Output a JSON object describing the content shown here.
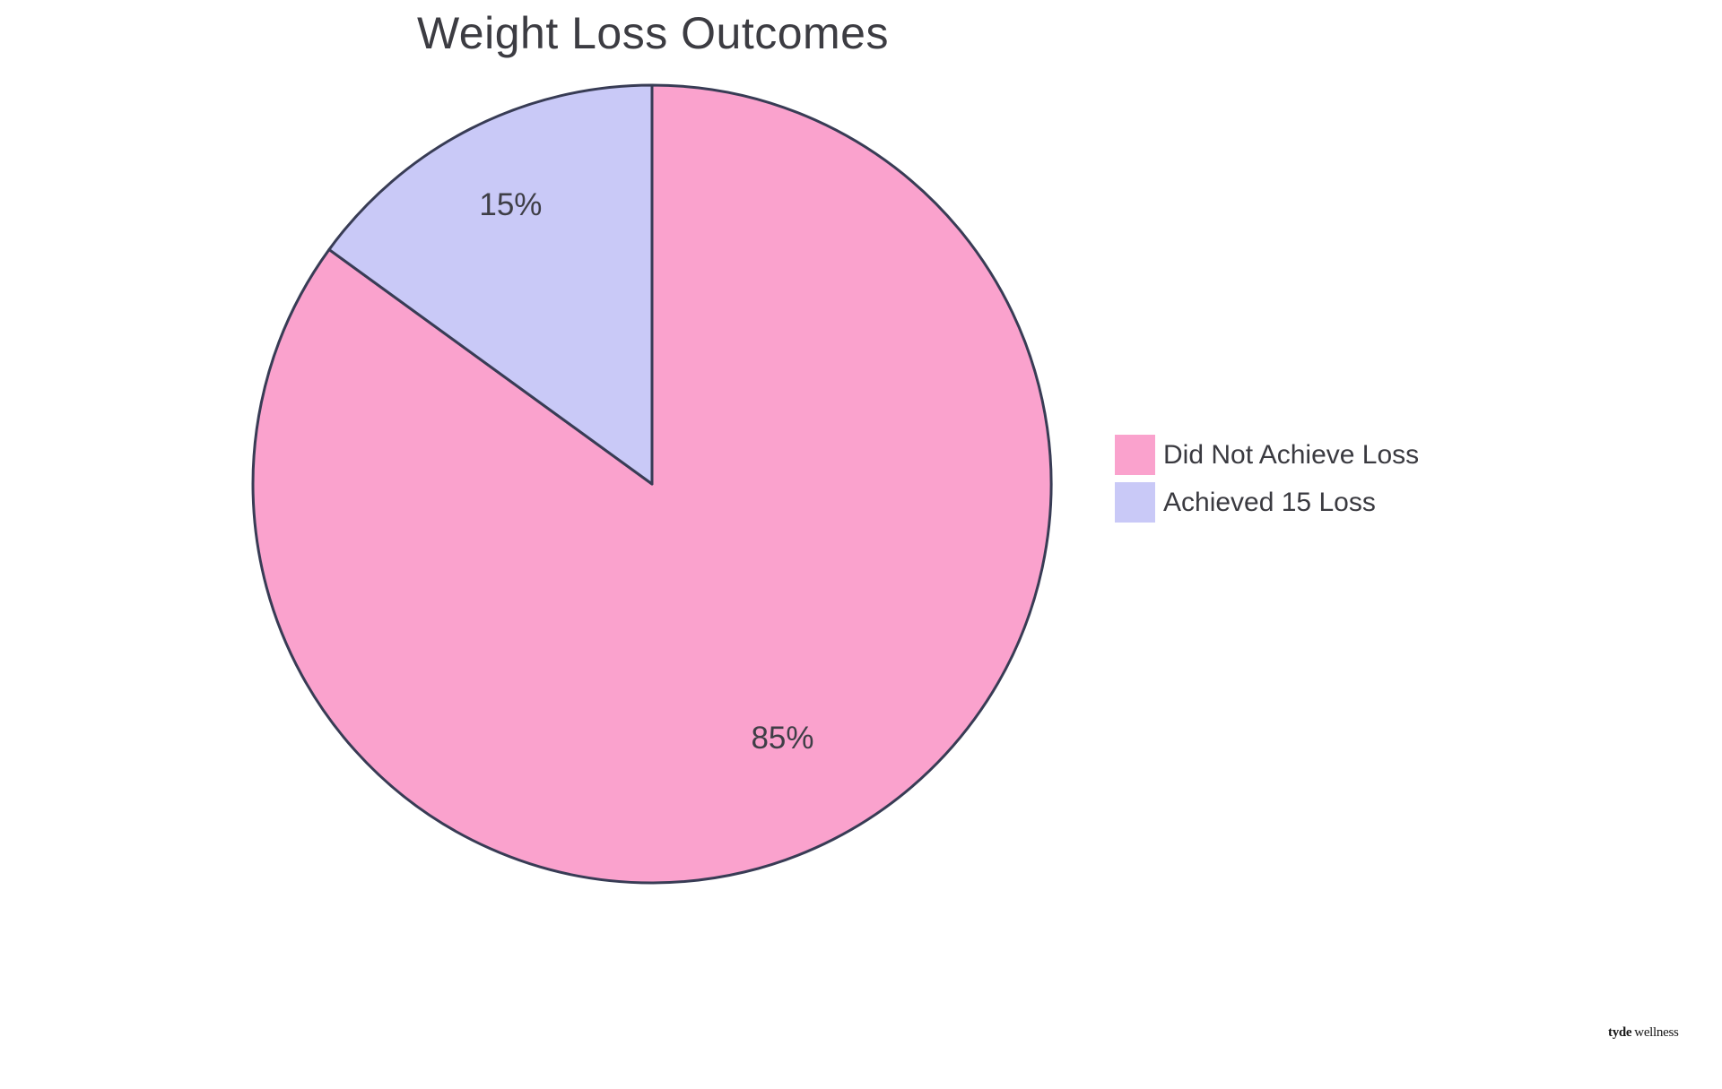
{
  "chart_data": {
    "type": "pie",
    "title": "Weight Loss Outcomes",
    "slices": [
      {
        "label": "Did Not Achieve Loss",
        "value": 85,
        "pct_label": "85%",
        "color": "#faa2cd"
      },
      {
        "label": "Achieved 15 Loss",
        "value": 15,
        "pct_label": "15%",
        "color": "#c9c9f7"
      }
    ],
    "start_angle_deg": 0,
    "direction": "clockwise",
    "stroke_color": "#383c55",
    "stroke_width": 3,
    "legend_position": "right",
    "label_radius_frac": [
      0.72,
      0.78
    ],
    "label_color": "#3e3e46",
    "background": "#ffffff"
  },
  "watermark": {
    "bold": "tyde",
    "rest": "wellness"
  }
}
